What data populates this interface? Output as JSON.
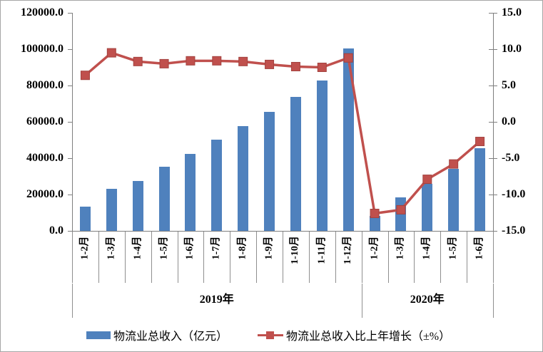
{
  "chart_data": {
    "type": "bar-line-combo",
    "title": "",
    "grid": false,
    "legend_position": "bottom",
    "categories": [
      "1-2月",
      "1-3月",
      "1-4月",
      "1-5月",
      "1-6月",
      "1-7月",
      "1-8月",
      "1-9月",
      "1-10月",
      "1-11月",
      "1-12月",
      "1-2月",
      "1-3月",
      "1-4月",
      "1-5月",
      "1-6月"
    ],
    "group_labels": [
      {
        "label": "2019年",
        "span": 11
      },
      {
        "label": "2020年",
        "span": 5
      }
    ],
    "series": [
      {
        "name": "物流业总收入（亿元）",
        "type": "bar",
        "axis": "left",
        "color": "#4F81BD",
        "values": [
          13200,
          23300,
          27400,
          35100,
          42400,
          50200,
          57800,
          65500,
          73800,
          82700,
          100500,
          8100,
          18300,
          25700,
          34000,
          45500
        ]
      },
      {
        "name": "物流业总收入比上年增长（±%）",
        "type": "line",
        "axis": "right",
        "color": "#C0504D",
        "marker": "square",
        "values": [
          6.4,
          9.5,
          8.3,
          8.0,
          8.4,
          8.4,
          8.3,
          7.9,
          7.6,
          7.5,
          8.8,
          -12.6,
          -12.1,
          -7.9,
          -5.8,
          -2.7
        ]
      }
    ],
    "left_axis": {
      "min": 0,
      "max": 120000,
      "step": 20000,
      "tick_labels": [
        "120000.0",
        "100000.0",
        "80000.0",
        "60000.0",
        "40000.0",
        "20000.0",
        "0.0"
      ]
    },
    "right_axis": {
      "min": -15,
      "max": 15,
      "step": 5,
      "tick_labels": [
        "15.0",
        "10.0",
        "5.0",
        "0.0",
        "-5.0",
        "-10.0",
        "-15.0"
      ]
    }
  },
  "legend": {
    "items": [
      {
        "label": "物流业总收入（亿元）",
        "swatch": "bar",
        "color": "#4F81BD"
      },
      {
        "label": "物流业总收入比上年增长（±%）",
        "swatch": "line-marker",
        "color": "#C0504D"
      }
    ]
  }
}
